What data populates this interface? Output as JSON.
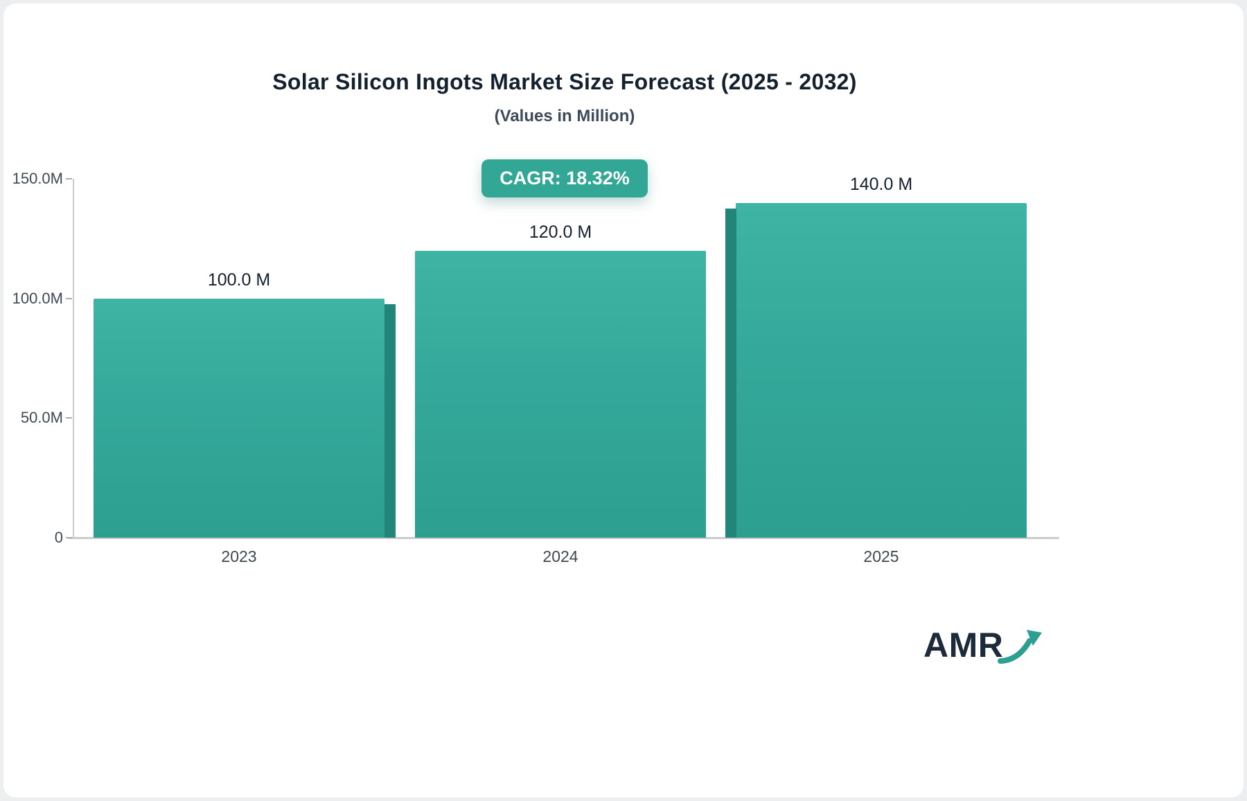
{
  "chart": {
    "title": "Solar Silicon Ingots Market Size Forecast (2025 - 2032)",
    "subtitle": "(Values in Million)",
    "cagr_label": "CAGR: 18.32%"
  },
  "footer": {
    "logo_text": "AMR"
  },
  "colors": {
    "bar_top": "#3fb4a4",
    "bar_bottom": "#2d9f90",
    "bar_side_3d": "#228579",
    "badge_bg": "#32a795",
    "badge_text": "#ffffff",
    "title_text": "#13202e",
    "axis_line": "#c8ccd1",
    "tick_text": "#3f4954"
  },
  "chart_data": {
    "type": "bar",
    "title": "Solar Silicon Ingots Market Size Forecast (2025 - 2032)",
    "subtitle": "(Values in Million)",
    "cagr": "18.32%",
    "unit": "Million",
    "categories": [
      "2023",
      "2024",
      "2025"
    ],
    "values": [
      100.0,
      120.0,
      140.0
    ],
    "bar_labels": [
      "100.0 M",
      "120.0 M",
      "140.0 M"
    ],
    "ylim": [
      0,
      150
    ],
    "yticks": [
      {
        "value": 150,
        "label": "150.0M"
      },
      {
        "value": 100,
        "label": "100.0M"
      },
      {
        "value": 50,
        "label": "50.0M"
      },
      {
        "value": 0,
        "label": "0"
      }
    ],
    "bar_sides": [
      "right",
      "none",
      "left"
    ],
    "grid": false,
    "legend": "none"
  }
}
